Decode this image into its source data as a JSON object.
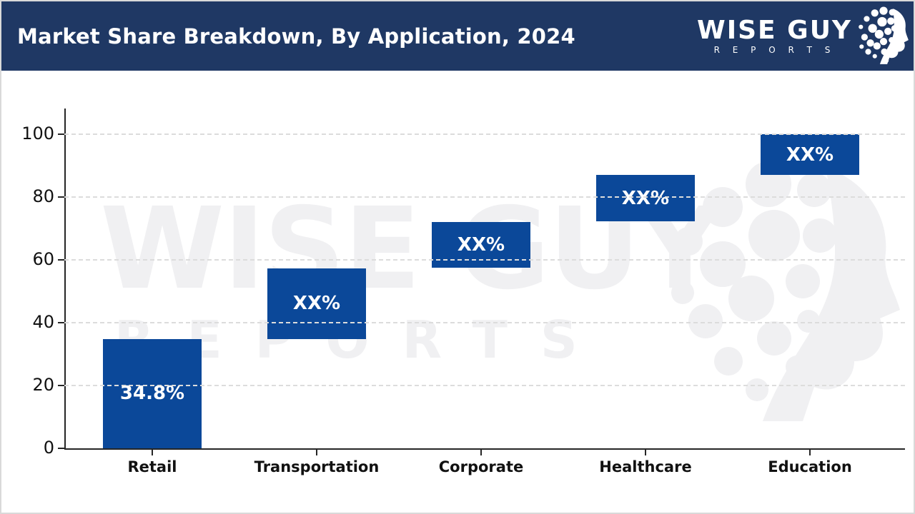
{
  "header": {
    "title": "Market Share Breakdown, By Application, 2024",
    "logo": {
      "line1": "WISE GUY",
      "line2": "R E P O R T S"
    }
  },
  "watermark": {
    "line1": "WISE GUY",
    "line2": "REPORTS"
  },
  "colors": {
    "header_bg": "#1f3864",
    "bar": "#0b4899",
    "grid": "#dcdcdc",
    "axis": "#262626",
    "watermark": "#f0f0f2",
    "bar_label": "#ffffff",
    "tick_text": "#111111"
  },
  "chart_data": {
    "type": "bar",
    "subtype": "waterfall",
    "title": "Market Share Breakdown, By Application, 2024",
    "categories": [
      "Retail",
      "Transportation",
      "Corporate",
      "Healthcare",
      "Education"
    ],
    "segments": [
      {
        "category": "Retail",
        "start": 0,
        "end": 34.8,
        "label": "34.8%"
      },
      {
        "category": "Transportation",
        "start": 34.8,
        "end": 57.3,
        "label": "XX%"
      },
      {
        "category": "Corporate",
        "start": 57.5,
        "end": 72.0,
        "label": "XX%"
      },
      {
        "category": "Healthcare",
        "start": 72.3,
        "end": 87.0,
        "label": "XX%"
      },
      {
        "category": "Education",
        "start": 87.0,
        "end": 100.0,
        "label": "XX%"
      }
    ],
    "yticks": [
      0,
      20,
      40,
      60,
      80,
      100
    ],
    "ylim": [
      0,
      105
    ],
    "xlabel": "",
    "ylabel": "",
    "grid": "horizontal-dashed",
    "gridline_above_bars": true,
    "legend": "none",
    "bar_color": "#0b4899"
  }
}
